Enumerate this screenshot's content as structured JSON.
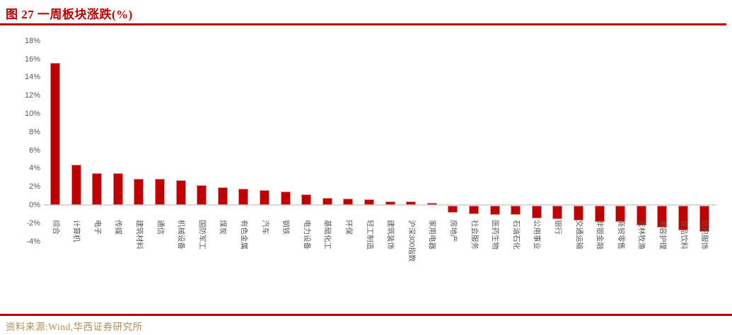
{
  "header": {
    "title": "图 27 一周板块涨跌(%)"
  },
  "chart_data": {
    "type": "bar",
    "title": "一周板块涨跌(%)",
    "categories": [
      "综合",
      "计算机",
      "电子",
      "传媒",
      "建筑材料",
      "通信",
      "机械设备",
      "国防军工",
      "煤炭",
      "有色金属",
      "汽车",
      "钢铁",
      "电力设备",
      "基础化工",
      "环保",
      "轻工制造",
      "建筑装饰",
      "沪深300指数",
      "家用电器",
      "房地产",
      "社会服务",
      "医药生物",
      "石油石化",
      "公用事业",
      "银行",
      "交通运输",
      "非银金融",
      "商贸零售",
      "农林牧渔",
      "美容护理",
      "食品饮料",
      "纺织服饰"
    ],
    "values": [
      15.6,
      4.4,
      3.5,
      3.5,
      2.9,
      2.9,
      2.7,
      2.2,
      1.9,
      1.8,
      1.6,
      1.5,
      1.2,
      0.8,
      0.7,
      0.6,
      0.4,
      0.4,
      0.2,
      -0.8,
      -0.9,
      -1.0,
      -1.0,
      -1.4,
      -1.5,
      -1.6,
      -1.8,
      -1.8,
      -2.2,
      -2.4,
      -2.7,
      -2.9
    ],
    "yticks": [
      18,
      16,
      14,
      12,
      10,
      8,
      6,
      4,
      2,
      0,
      -2,
      -4
    ],
    "ytick_suffix": "%",
    "ylim": [
      -4,
      18
    ],
    "grid": "zero-baseline-only",
    "legend": "none",
    "bar_color": "#C00000",
    "bar_border_color": "#D99694",
    "tick_label_color": "#595959",
    "baseline_color": "#D9D9D9"
  },
  "footer": {
    "source": "资料来源:Wind,华西证券研究所"
  },
  "colors": {
    "accent_red": "#C00000",
    "source_text": "#AE8E55"
  }
}
